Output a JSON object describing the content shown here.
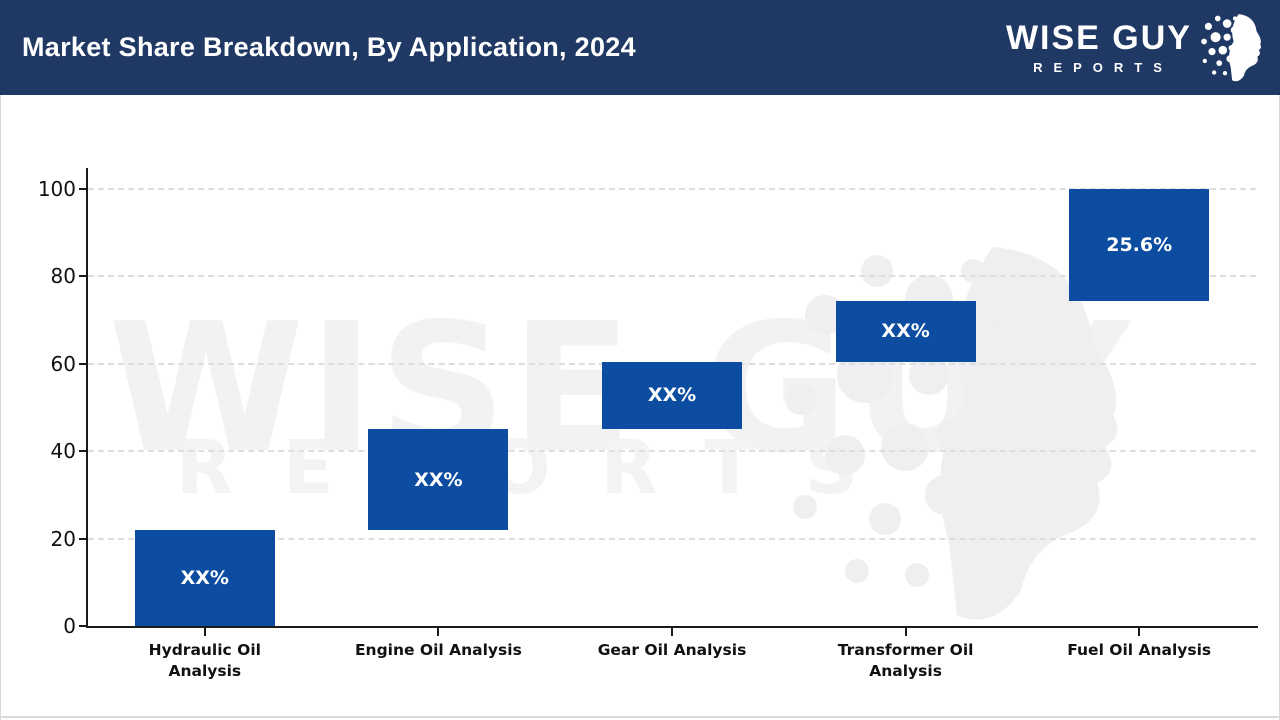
{
  "header": {
    "title": "Market Share Breakdown, By Application, 2024",
    "bg_color": "#1f3864"
  },
  "logo": {
    "name_line": "WISE GUY",
    "sub_line": "REPORTS"
  },
  "watermark": {
    "line1": "WISE GUY",
    "line2": "REPORTS"
  },
  "chart_data": {
    "type": "bar",
    "subtype": "floating-waterfall",
    "title": "Market Share Breakdown, By Application, 2024",
    "categories": [
      "Hydraulic Oil Analysis",
      "Engine Oil Analysis",
      "Gear Oil Analysis",
      "Transformer Oil Analysis",
      "Fuel Oil Analysis"
    ],
    "segments": [
      {
        "category": "Hydraulic Oil Analysis",
        "start": 0,
        "end": 22,
        "label": "XX%"
      },
      {
        "category": "Engine Oil Analysis",
        "start": 22,
        "end": 45,
        "label": "XX%"
      },
      {
        "category": "Gear Oil Analysis",
        "start": 45,
        "end": 60.5,
        "label": "XX%"
      },
      {
        "category": "Transformer Oil Analysis",
        "start": 60.5,
        "end": 74.4,
        "label": "XX%"
      },
      {
        "category": "Fuel Oil Analysis",
        "start": 74.4,
        "end": 100,
        "label": "25.6%"
      }
    ],
    "xlabel": "",
    "ylabel": "",
    "ylim": [
      0,
      100
    ],
    "yticks": [
      0,
      20,
      40,
      60,
      80,
      100
    ],
    "grid": "horizontal-dashed",
    "legend": "none",
    "bar_color": "#0c4da1",
    "bar_label_color": "#ffffff"
  }
}
